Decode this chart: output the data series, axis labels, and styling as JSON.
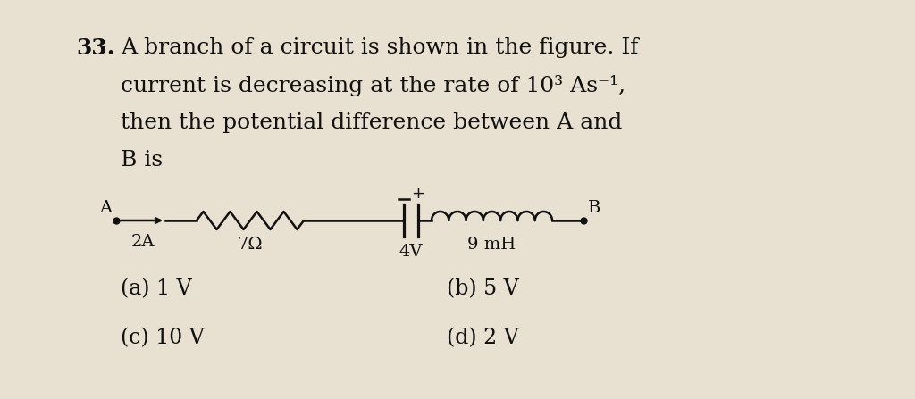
{
  "bg_color": "#e8e0d0",
  "text_color": "#111111",
  "question_number": "33.",
  "line1": "A branch of a circuit is shown in the figure. If",
  "line2": "current is decreasing at the rate of 10³ As⁻¹,",
  "line3": "then the potential difference between A and",
  "line4": "B is",
  "options_a": "(a) 1 V",
  "options_b": "(b) 5 V",
  "options_c": "(c) 10 V",
  "options_d": "(d) 2 V",
  "wire_color": "#111111",
  "font_size_q": 18,
  "font_size_opt": 17,
  "font_size_circuit": 14
}
